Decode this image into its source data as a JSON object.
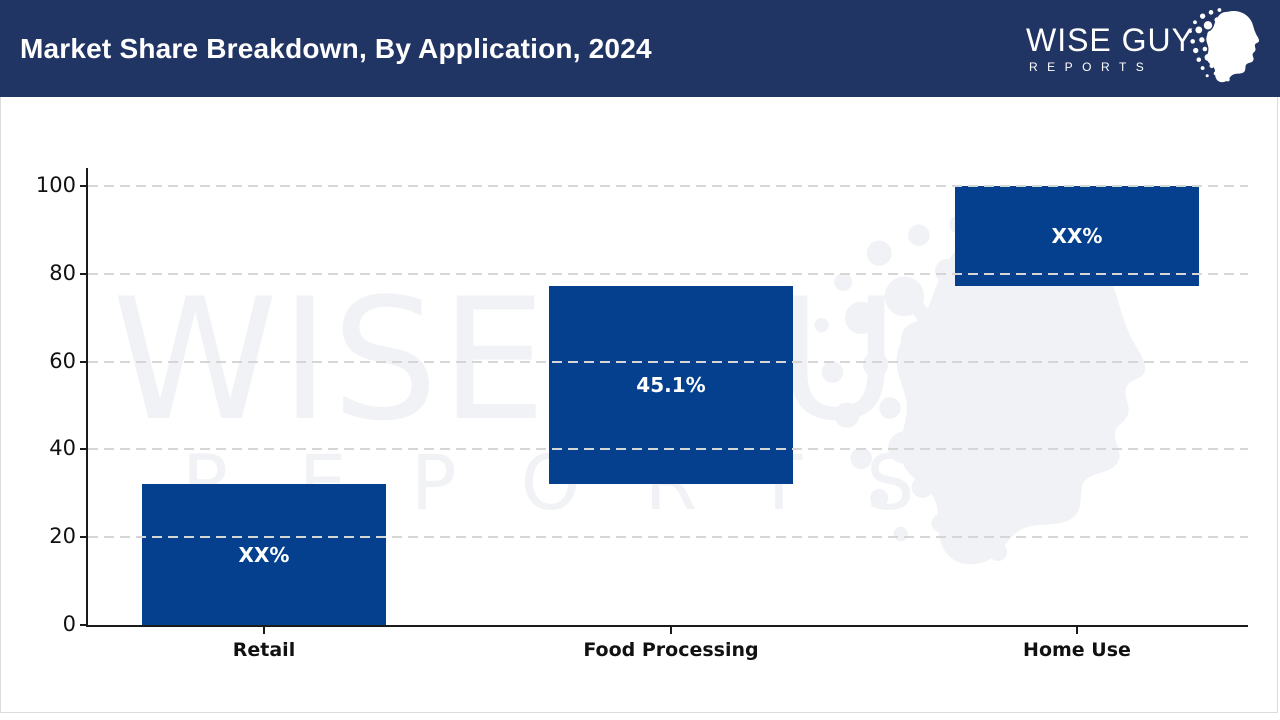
{
  "header": {
    "title": "Market Share Breakdown, By Application, 2024",
    "logo": {
      "brand": "WISE GUY",
      "sub": "REPORTS"
    }
  },
  "watermark": {
    "line1": "WISE GUY",
    "line2": "REPORTS"
  },
  "colors": {
    "header_bg": "#213564",
    "bar": "#05408f",
    "bar_label": "#ffffff",
    "grid": "#d6d6d6",
    "axis": "#1a1a1a",
    "tick_label": "#111111",
    "watermark": "#f1f2f5"
  },
  "chart_data": {
    "type": "bar",
    "subtype": "floating-waterfall",
    "title": "Market Share Breakdown, By Application, 2024",
    "categories": [
      "Retail",
      "Food Processing",
      "Home Use"
    ],
    "segments": [
      {
        "category": "Retail",
        "start": 0,
        "end": 32.1,
        "label": "XX%"
      },
      {
        "category": "Food Processing",
        "start": 32.1,
        "end": 77.2,
        "label": "45.1%"
      },
      {
        "category": "Home Use",
        "start": 77.2,
        "end": 100,
        "label": "XX%"
      }
    ],
    "xlabel": "",
    "ylabel": "",
    "ylim": [
      0,
      100
    ],
    "yticks": [
      0,
      20,
      40,
      60,
      80,
      100
    ],
    "grid": "horizontal-dashed",
    "legend": "none"
  }
}
